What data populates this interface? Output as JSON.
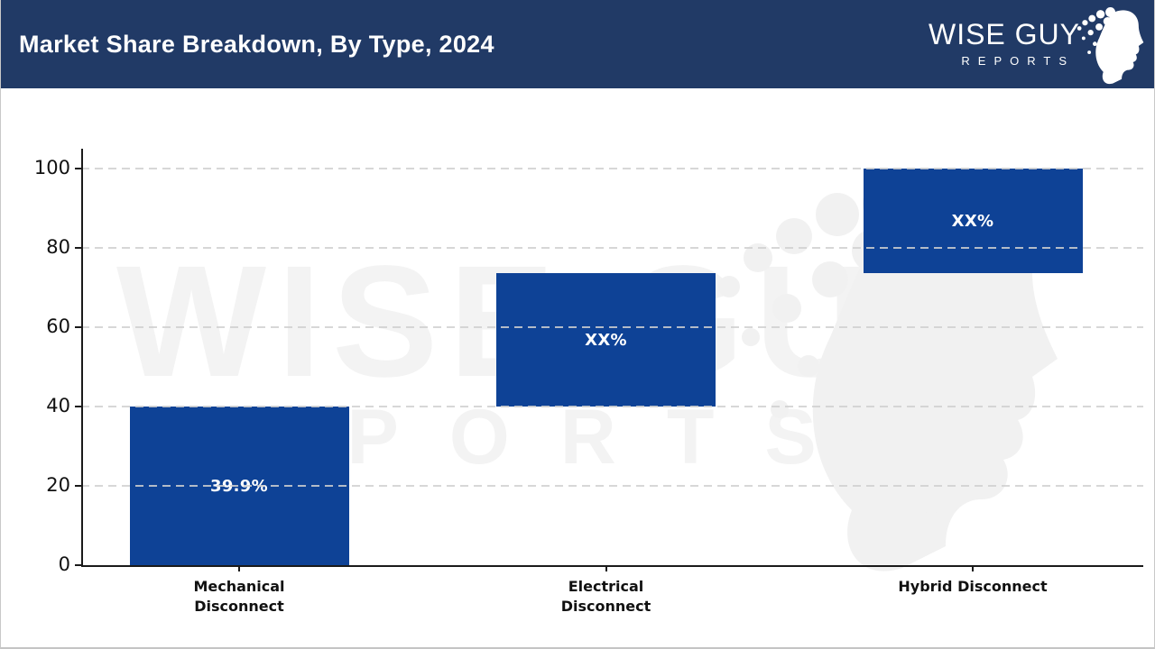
{
  "header": {
    "title": "Market Share Breakdown, By Type, 2024",
    "logo": {
      "name": "WISE GUY",
      "sub": "REPORTS"
    }
  },
  "watermark": {
    "big": "WISE GUY",
    "sub": "REPORTS"
  },
  "chart_data": {
    "type": "bar",
    "subtype": "waterfall-floating-bars",
    "title": "Market Share Breakdown, By Type, 2024",
    "categories": [
      "Mechanical\nDisconnect",
      "Electrical\nDisconnect",
      "Hybrid Disconnect"
    ],
    "bars": [
      {
        "category": "Mechanical Disconnect",
        "start": 0,
        "end": 39.9,
        "label": "39.9%"
      },
      {
        "category": "Electrical Disconnect",
        "start": 40,
        "end": 73.6,
        "label": "XX%"
      },
      {
        "category": "Hybrid Disconnect",
        "start": 73.7,
        "end": 99.9,
        "label": "XX%"
      }
    ],
    "yticks": [
      0,
      20,
      40,
      60,
      80,
      100
    ],
    "ylim": [
      0,
      105
    ],
    "xlabel": "",
    "ylabel": "",
    "grid": "dashed-horizontal",
    "legend": "none",
    "bar_color": "#0e4296",
    "label_color": "#ffffff"
  },
  "colors": {
    "header_bg": "#213a66",
    "bar": "#0e4296",
    "axis": "#1a1a1a",
    "grid": "#d0d0d0",
    "watermark": "#f3f3f3"
  }
}
